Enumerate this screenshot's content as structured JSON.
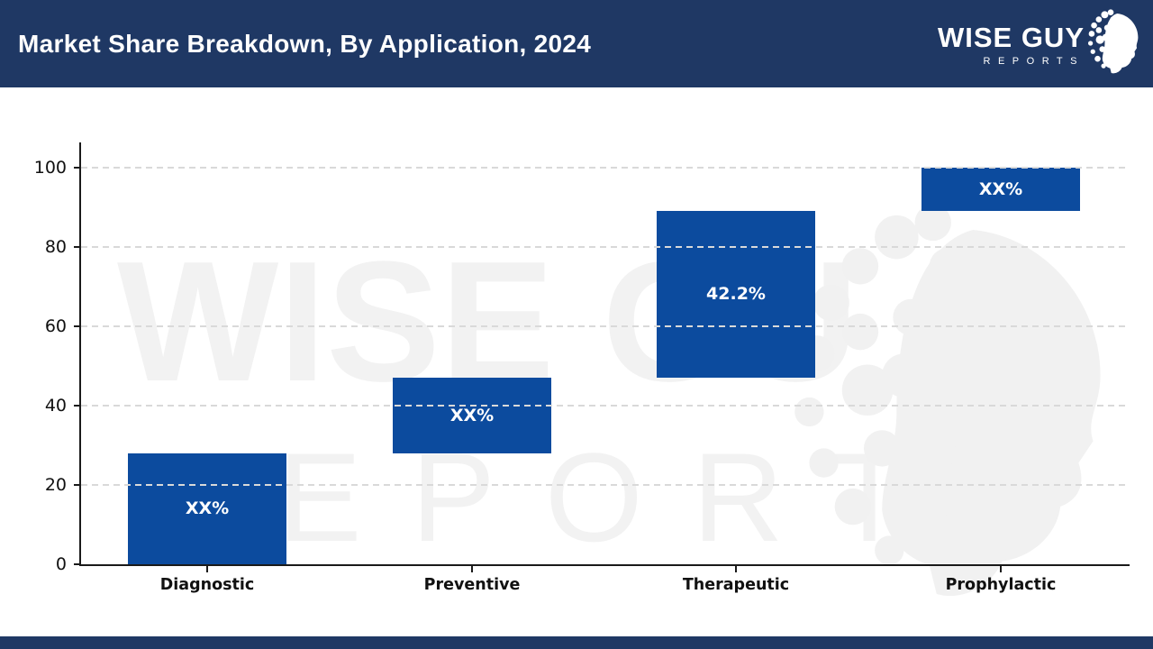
{
  "header": {
    "title": "Market Share Breakdown, By Application, 2024"
  },
  "logo": {
    "name": "WISE GUY",
    "tagline": "REPORTS"
  },
  "watermark": {
    "name": "WISE GU",
    "tagline": "REPORTS"
  },
  "colors": {
    "header_bg": "#1f3864",
    "footer_bg": "#1f3864",
    "bar": "#0c4b9e",
    "watermark": "#f2f2f2",
    "gridline": "#d9d9d9",
    "axis": "#1a1a1a",
    "value_label": "#ffffff"
  },
  "chart_data": {
    "type": "bar",
    "subtype": "waterfall",
    "title": "Market Share Breakdown, By Application, 2024",
    "categories": [
      "Diagnostic",
      "Preventive",
      "Therapeutic",
      "Prophylactic"
    ],
    "segments": [
      {
        "category": "Diagnostic",
        "start": 0,
        "end": 28,
        "label": "XX%"
      },
      {
        "category": "Preventive",
        "start": 28,
        "end": 47,
        "label": "XX%"
      },
      {
        "category": "Therapeutic",
        "start": 47,
        "end": 89.2,
        "label": "42.2%"
      },
      {
        "category": "Prophylactic",
        "start": 89.2,
        "end": 100,
        "label": "XX%"
      }
    ],
    "xlabel": "",
    "ylabel": "",
    "ylim": [
      0,
      100
    ],
    "yticks": [
      0,
      20,
      40,
      60,
      80,
      100
    ],
    "grid": "horizontal-dashed-drawn-above-bars",
    "legend": "none",
    "bar_color": "#0c4b9e",
    "value_label_color": "#ffffff"
  }
}
